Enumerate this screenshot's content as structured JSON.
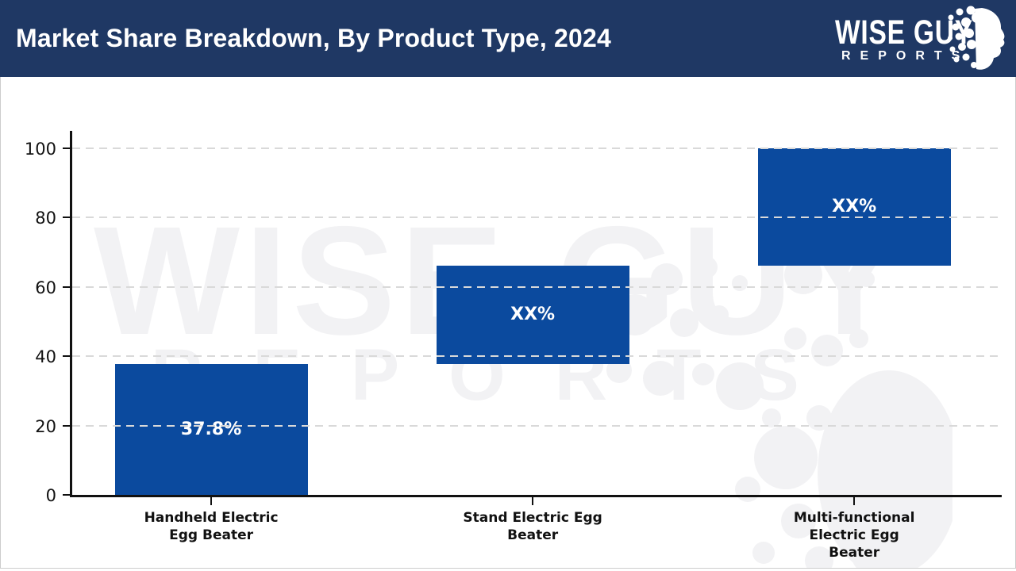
{
  "header": {
    "title": "Market Share Breakdown, By Product Type, 2024",
    "bg_color": "#1f3864",
    "logo": {
      "wordmark": "WISE GUY",
      "subtext": "REPORTS"
    }
  },
  "watermark": {
    "line1": "WISE GUY",
    "line2": "REPORTS"
  },
  "chart_data": {
    "type": "bar",
    "variant": "waterfall",
    "title": "Market Share Breakdown, By Product Type, 2024",
    "categories": [
      [
        "Handheld Electric",
        "Egg Beater"
      ],
      [
        "Stand Electric Egg",
        "Beater"
      ],
      [
        "Multi-functional",
        "Electric Egg",
        "Beater"
      ]
    ],
    "bars": [
      {
        "start": 0,
        "end": 37.8,
        "label": "37.8%"
      },
      {
        "start": 37.8,
        "end": 66.2,
        "label": "XX%"
      },
      {
        "start": 66.2,
        "end": 100,
        "label": "XX%"
      }
    ],
    "yticks": [
      0,
      20,
      40,
      60,
      80,
      100
    ],
    "ylim": [
      0,
      105
    ],
    "xlabel": "",
    "ylabel": "",
    "legend": "none",
    "grid": {
      "axis": "y",
      "style": "dashed",
      "color": "#d9d9d9"
    },
    "bar_color": "#0b4a9e",
    "bar_label_color": "#ffffff",
    "axis_color": "#111111"
  }
}
